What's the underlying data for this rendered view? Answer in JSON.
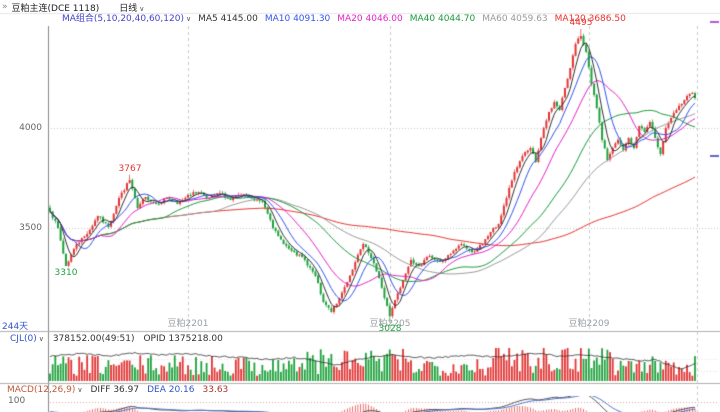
{
  "title_bar": {
    "nav_icon": "»",
    "symbol": "豆粕主连(DCE 1118)",
    "period": "日线",
    "dropdown": "∨"
  },
  "ma_header": {
    "label": "MA组合(5,10,20,40,60,120)",
    "dropdown": "∨",
    "items": [
      {
        "name": "MA5",
        "value": "4145.00",
        "color": "#333333"
      },
      {
        "name": "MA10",
        "value": "4091.30",
        "color": "#3355ee"
      },
      {
        "name": "MA20",
        "value": "4046.00",
        "color": "#e324c8"
      },
      {
        "name": "MA40",
        "value": "4044.70",
        "color": "#1a9b3c"
      },
      {
        "name": "MA60",
        "value": "4059.63",
        "color": "#9a9a9a"
      },
      {
        "name": "MA120",
        "value": "3686.50",
        "color": "#e8322f"
      }
    ]
  },
  "main_chart": {
    "day_count_label": "244天",
    "y_tick_labels": [
      "4000",
      "3500"
    ]
  },
  "volume_panel": {
    "indicator": "CJL(0)",
    "dropdown": "∨",
    "value": "378152.00(49:51)",
    "opid_label": "OPID",
    "opid_value": "1375218.00"
  },
  "macd_panel": {
    "indicator": "MACD(12,26,9)",
    "dropdown": "∨",
    "diff_label": "DIFF",
    "diff_value": "36.97",
    "dea_label": "DEA",
    "dea_value": "20.16",
    "macd_value": "33.63",
    "y_tick": "100"
  },
  "colors": {
    "up": "#e23535",
    "down": "#1fa23d",
    "ma5": "#333333",
    "ma10": "#3355ee",
    "ma20": "#e324c8",
    "ma40": "#1a9b3c",
    "ma60": "#9a9a9a",
    "ma120": "#e8322f",
    "grid": "#c8c8c8",
    "axis": "#888888",
    "opid_line": "#333333",
    "diff_line": "#555555",
    "dea_line": "#5577cc"
  },
  "chart_data": {
    "type": "candlestick",
    "symbol": "豆粕主连(DCE 1118)",
    "period": "日线",
    "days": 244,
    "y_ticks": [
      4000,
      3500
    ],
    "price_min": 2985,
    "price_max": 4510,
    "ma_periods": [
      5,
      10,
      20,
      40,
      60,
      120
    ],
    "ma_values": {
      "MA5": 4145.0,
      "MA10": 4091.3,
      "MA20": 4046.0,
      "MA40": 4044.7,
      "MA60": 4059.63,
      "MA120": 3686.5
    },
    "close_anchors": [
      [
        0,
        3585
      ],
      [
        3,
        3500
      ],
      [
        6,
        3310
      ],
      [
        10,
        3420
      ],
      [
        14,
        3470
      ],
      [
        18,
        3560
      ],
      [
        22,
        3505
      ],
      [
        26,
        3650
      ],
      [
        30,
        3740
      ],
      [
        33,
        3600
      ],
      [
        36,
        3655
      ],
      [
        40,
        3620
      ],
      [
        44,
        3650
      ],
      [
        48,
        3620
      ],
      [
        52,
        3665
      ],
      [
        56,
        3680
      ],
      [
        60,
        3650
      ],
      [
        64,
        3675
      ],
      [
        68,
        3640
      ],
      [
        72,
        3665
      ],
      [
        76,
        3650
      ],
      [
        80,
        3635
      ],
      [
        84,
        3500
      ],
      [
        88,
        3420
      ],
      [
        92,
        3380
      ],
      [
        96,
        3340
      ],
      [
        100,
        3260
      ],
      [
        103,
        3130
      ],
      [
        106,
        3080
      ],
      [
        109,
        3150
      ],
      [
        112,
        3230
      ],
      [
        115,
        3330
      ],
      [
        118,
        3420
      ],
      [
        121,
        3350
      ],
      [
        124,
        3250
      ],
      [
        126,
        3150
      ],
      [
        128,
        3060
      ],
      [
        130,
        3140
      ],
      [
        133,
        3240
      ],
      [
        136,
        3340
      ],
      [
        139,
        3310
      ],
      [
        143,
        3360
      ],
      [
        147,
        3330
      ],
      [
        151,
        3370
      ],
      [
        155,
        3420
      ],
      [
        159,
        3380
      ],
      [
        163,
        3420
      ],
      [
        166,
        3480
      ],
      [
        169,
        3520
      ],
      [
        172,
        3650
      ],
      [
        175,
        3780
      ],
      [
        178,
        3860
      ],
      [
        181,
        3900
      ],
      [
        183,
        3830
      ],
      [
        185,
        3950
      ],
      [
        188,
        4080
      ],
      [
        190,
        4130
      ],
      [
        192,
        4090
      ],
      [
        194,
        4200
      ],
      [
        196,
        4300
      ],
      [
        198,
        4420
      ],
      [
        200,
        4460
      ],
      [
        202,
        4380
      ],
      [
        204,
        4220
      ],
      [
        206,
        4100
      ],
      [
        208,
        3940
      ],
      [
        210,
        3840
      ],
      [
        212,
        3900
      ],
      [
        214,
        3940
      ],
      [
        216,
        3890
      ],
      [
        218,
        3950
      ],
      [
        220,
        3900
      ],
      [
        222,
        4010
      ],
      [
        224,
        3980
      ],
      [
        226,
        4030
      ],
      [
        228,
        3950
      ],
      [
        230,
        3870
      ],
      [
        232,
        4000
      ],
      [
        234,
        4050
      ],
      [
        236,
        4090
      ],
      [
        238,
        4120
      ],
      [
        240,
        4160
      ],
      [
        242,
        4175
      ],
      [
        243,
        4150
      ]
    ],
    "annotations": [
      {
        "day": 6,
        "price": 3310,
        "label": "3310",
        "type": "low"
      },
      {
        "day": 30,
        "price": 3767,
        "label": "3767",
        "type": "high"
      },
      {
        "day": 128,
        "price": 3028,
        "label": "3028",
        "type": "low"
      },
      {
        "day": 200,
        "price": 4495,
        "label": "4495",
        "type": "high"
      }
    ],
    "contract_rolls": [
      {
        "day": 52,
        "label": "豆粕2201"
      },
      {
        "day": 128,
        "label": "豆粕2205"
      },
      {
        "day": 203,
        "label": "豆粕2209"
      }
    ],
    "volume": {
      "indicator": "CJL(0)",
      "current": "378152.00(49:51)",
      "open_interest": "1375218.00",
      "opid_anchors": [
        [
          0,
          0.3
        ],
        [
          12,
          0.22
        ],
        [
          22,
          0.3
        ],
        [
          32,
          0.2
        ],
        [
          42,
          0.26
        ],
        [
          52,
          0.22
        ],
        [
          62,
          0.3
        ],
        [
          72,
          0.34
        ],
        [
          82,
          0.4
        ],
        [
          92,
          0.34
        ],
        [
          100,
          0.44
        ],
        [
          108,
          0.56
        ],
        [
          114,
          0.44
        ],
        [
          120,
          0.34
        ],
        [
          128,
          0.26
        ],
        [
          136,
          0.32
        ],
        [
          144,
          0.35
        ],
        [
          152,
          0.31
        ],
        [
          160,
          0.28
        ],
        [
          168,
          0.33
        ],
        [
          176,
          0.26
        ],
        [
          184,
          0.22
        ],
        [
          192,
          0.3
        ],
        [
          200,
          0.26
        ],
        [
          208,
          0.32
        ],
        [
          216,
          0.38
        ],
        [
          222,
          0.44
        ],
        [
          228,
          0.4
        ],
        [
          233,
          0.55
        ],
        [
          238,
          0.68
        ],
        [
          241,
          0.58
        ],
        [
          243,
          0.52
        ]
      ]
    },
    "macd": {
      "fast": 12,
      "slow": 26,
      "signal": 9,
      "diff": 36.97,
      "dea": 20.16,
      "bar": 33.63,
      "y_tick": 100
    }
  }
}
